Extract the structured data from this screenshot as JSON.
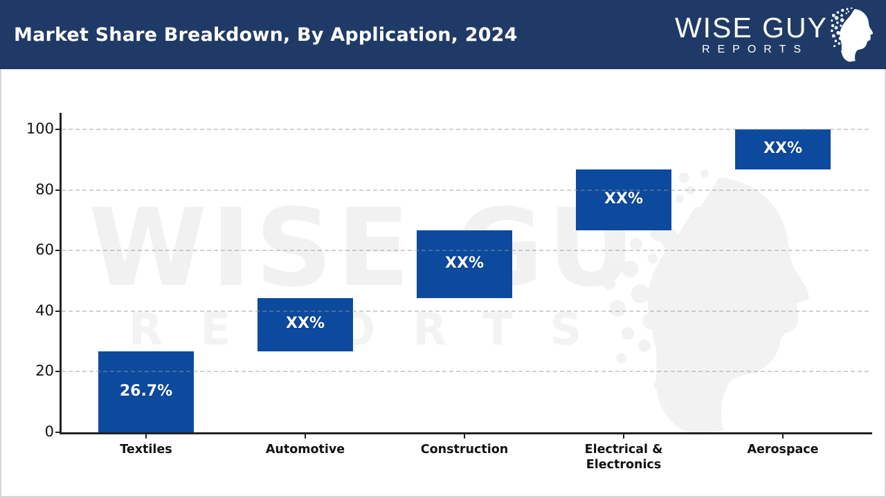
{
  "header": {
    "title": "Market Share Breakdown, By Application, 2024",
    "logo": {
      "line1": "WISE GUY",
      "line2": "REPORTS"
    }
  },
  "watermark": {
    "line1": "WISE GUY",
    "line2": "REPORTS"
  },
  "chart_data": {
    "type": "bar",
    "subtype": "floating-waterfall-segments",
    "title": "Market Share Breakdown, By Application, 2024",
    "categories": [
      "Textiles",
      "Automotive",
      "Construction",
      "Electrical &\nElectronics",
      "Aerospace"
    ],
    "segments": [
      {
        "category": "Textiles",
        "start": 0,
        "end": 26.7,
        "label": "26.7%"
      },
      {
        "category": "Automotive",
        "start": 26.7,
        "end": 44.4,
        "label": "XX%"
      },
      {
        "category": "Construction",
        "start": 44.4,
        "end": 66.7,
        "label": "XX%"
      },
      {
        "category": "Electrical & Electronics",
        "start": 66.7,
        "end": 86.8,
        "label": "XX%"
      },
      {
        "category": "Aerospace",
        "start": 86.8,
        "end": 100,
        "label": "XX%"
      }
    ],
    "xlabel": "",
    "ylabel": "",
    "ylim": [
      0,
      100
    ],
    "yticks": [
      0,
      20,
      40,
      60,
      80,
      100
    ],
    "grid": "horizontal-dashed",
    "legend": "none"
  },
  "colors": {
    "header_bg": "#1f3a66",
    "bar": "#0c4a9e",
    "bar_label": "#ffffff",
    "axis": "#222222",
    "grid": "#d4d4d4",
    "watermark": "#f1f1f1",
    "figure_border": "#d6d6da"
  }
}
